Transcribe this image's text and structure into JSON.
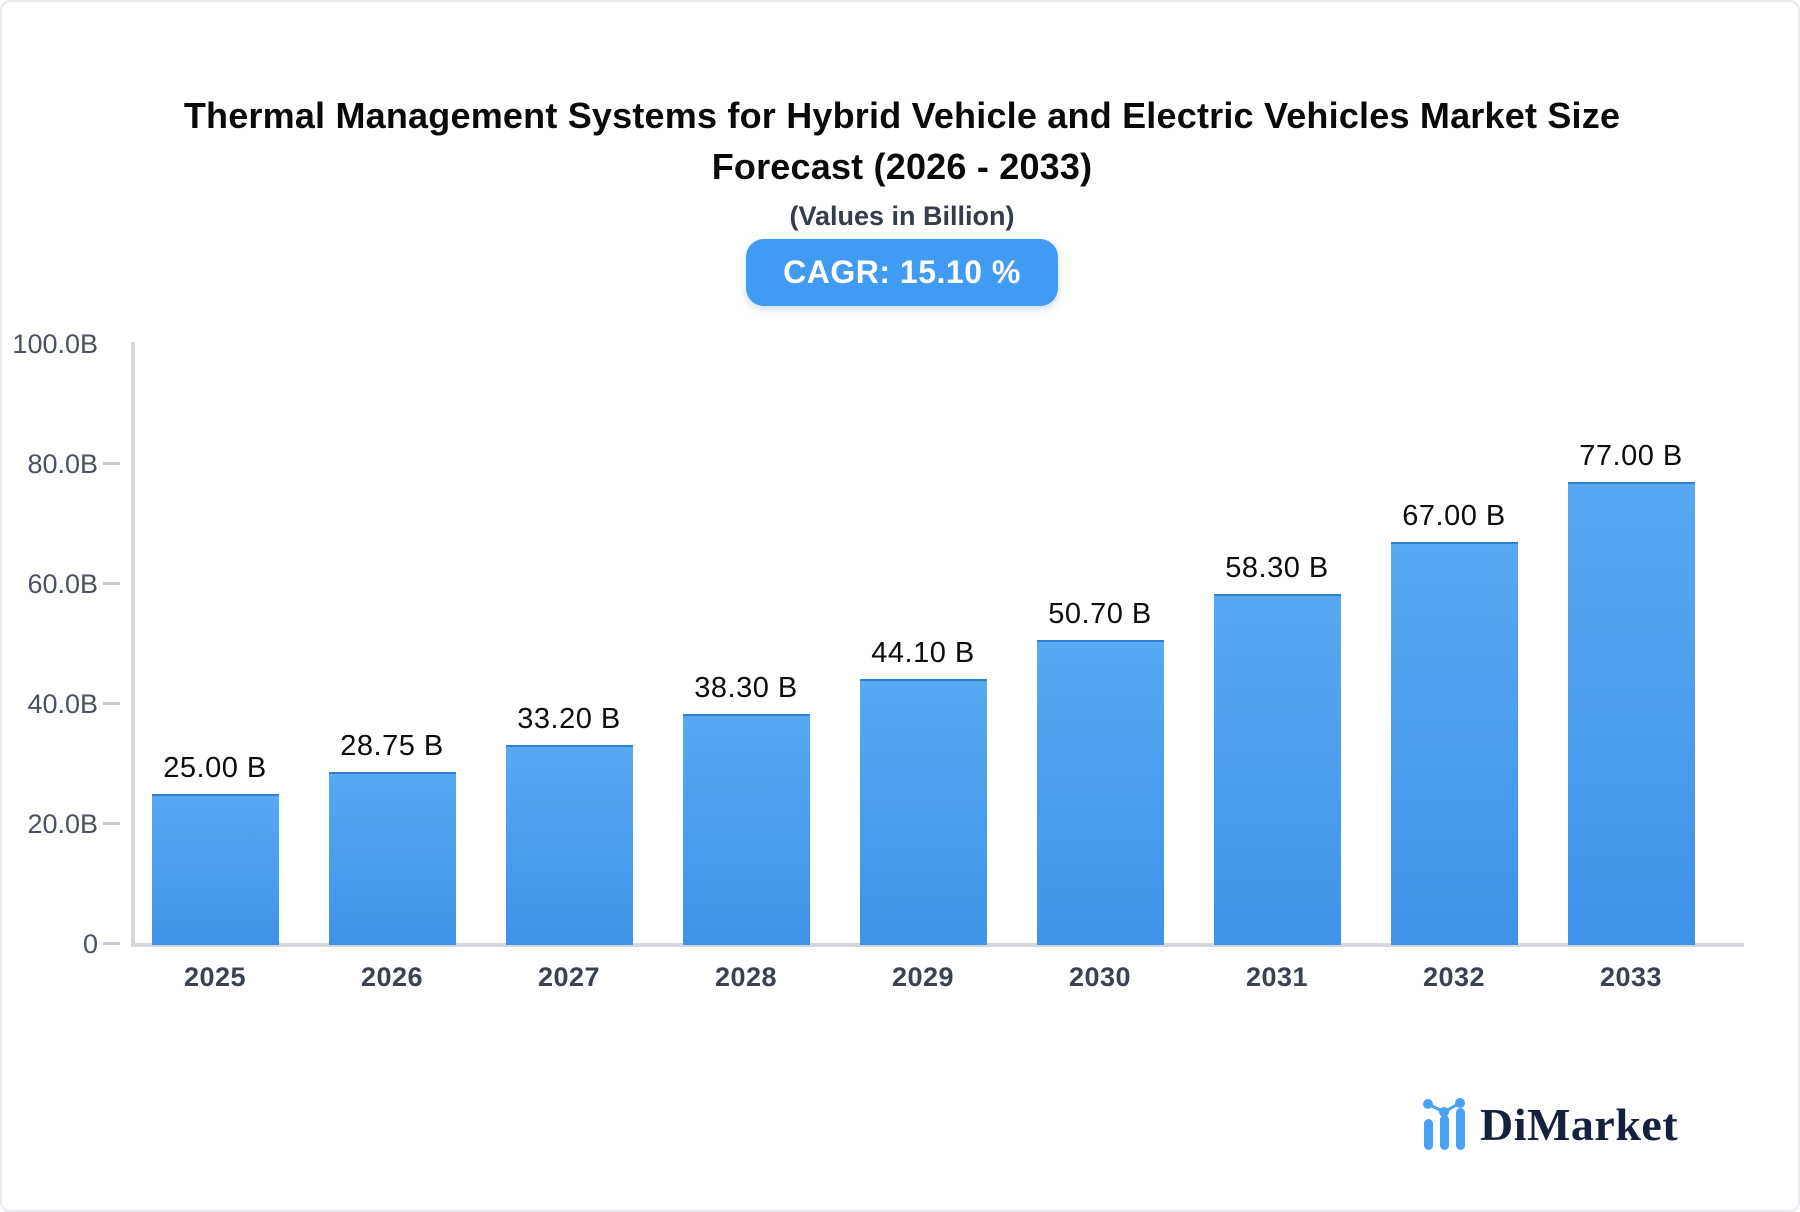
{
  "header": {
    "title_line1": "Thermal Management Systems for Hybrid Vehicle and Electric Vehicles Market Size",
    "title_line2": "Forecast (2026 - 2033)",
    "subtitle": "(Values in Billion)",
    "cagr_label": "CAGR: 15.10 %"
  },
  "chart_data": {
    "type": "bar",
    "title": "Thermal Management Systems for Hybrid Vehicle and Electric Vehicles Market Size Forecast (2026 - 2033)",
    "subtitle": "(Values in Billion)",
    "annotation": "CAGR: 15.10 %",
    "categories": [
      "2025",
      "2026",
      "2027",
      "2028",
      "2029",
      "2030",
      "2031",
      "2032",
      "2033"
    ],
    "values": [
      25.0,
      28.75,
      33.2,
      38.3,
      44.1,
      50.7,
      58.3,
      67.0,
      77.0
    ],
    "value_labels": [
      "25.00 B",
      "28.75 B",
      "33.20 B",
      "38.30 B",
      "44.10 B",
      "50.70 B",
      "58.30 B",
      "67.00 B",
      "77.00 B"
    ],
    "unit": "B",
    "xlabel": "",
    "ylabel": "",
    "ylim": [
      0,
      100
    ],
    "y_ticks": [
      {
        "value": 0,
        "label": "0",
        "dash": true
      },
      {
        "value": 20,
        "label": "20.0B",
        "dash": true
      },
      {
        "value": 40,
        "label": "40.0B",
        "dash": true
      },
      {
        "value": 60,
        "label": "60.0B",
        "dash": true
      },
      {
        "value": 80,
        "label": "80.0B",
        "dash": true
      },
      {
        "value": 100,
        "label": "100.0B",
        "dash": false
      }
    ],
    "grid": false,
    "legend": false,
    "bar_style": "pseudo-3d"
  },
  "colors": {
    "title": "#0a0a0a",
    "subtitle": "#353d4a",
    "badge_bg": "#419bf2",
    "badge_text": "#ffffff",
    "bar_front_top": "#58a9f2",
    "bar_front_bottom": "#3e92e8",
    "bar_top_edge": "#2e81d2",
    "bar_side": "#2f77bb",
    "bar_side_bottom": "#2b6dac",
    "axis_line": "#d5d7dd",
    "tick_dash": "#c9cdd5",
    "y_label": "#4a5264",
    "x_label": "#3a4152",
    "value_label": "#0b0d11",
    "logo_text": "#15203d",
    "logo_icon": "#4aa2f6"
  },
  "footer": {
    "brand": "DiMarket"
  }
}
